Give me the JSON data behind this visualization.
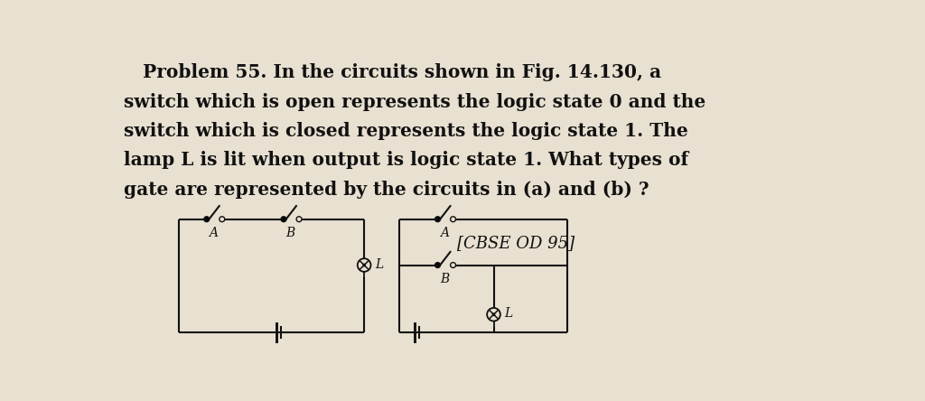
{
  "bg_color": "#e8e0d0",
  "text_color": "#111111",
  "line_color": "#111111",
  "title_line1": "   Problem 55. In the circuits shown in Fig. 14.130, a",
  "title_line2": "switch which is open represents the logic state 0 and the",
  "title_line3": "switch which is closed represents the logic state 1. The",
  "title_line4": "lamp L is lit when output is logic state 1. What types of",
  "title_line5": "gate are represented by the circuits in (a) and (b) ?",
  "citation": "[CBSE OD 95]",
  "font_size_text": 14.5,
  "font_size_citation": 13,
  "font_size_label": 10,
  "fig_width": 10.24,
  "fig_height": 4.44,
  "dpi": 100
}
